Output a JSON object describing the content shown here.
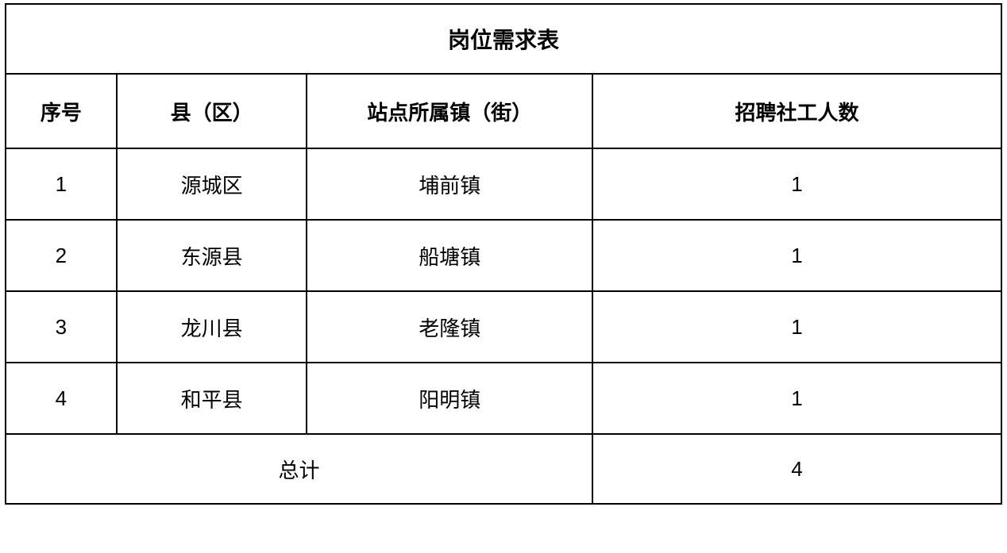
{
  "table": {
    "title": "岗位需求表",
    "headers": {
      "num": "序号",
      "district": "县（区）",
      "town": "站点所属镇（街）",
      "count": "招聘社工人数"
    },
    "rows": [
      {
        "num": "1",
        "district": "源城区",
        "town": "埔前镇",
        "count": "1"
      },
      {
        "num": "2",
        "district": "东源县",
        "town": "船塘镇",
        "count": "1"
      },
      {
        "num": "3",
        "district": "龙川县",
        "town": "老隆镇",
        "count": "1"
      },
      {
        "num": "4",
        "district": "和平县",
        "town": "阳明镇",
        "count": "1"
      }
    ],
    "total_label": "总计",
    "total_value": "4",
    "styling": {
      "border_color": "#000000",
      "border_width": 2,
      "background_color": "#ffffff",
      "text_color": "#000000",
      "title_fontsize": 28,
      "header_fontsize": 26,
      "cell_fontsize": 26,
      "title_row_height": 88,
      "header_row_height": 94,
      "data_row_height": 90,
      "total_row_height": 88,
      "column_widths": {
        "num": 140,
        "district": 240,
        "town": 360,
        "count": 516
      }
    }
  }
}
